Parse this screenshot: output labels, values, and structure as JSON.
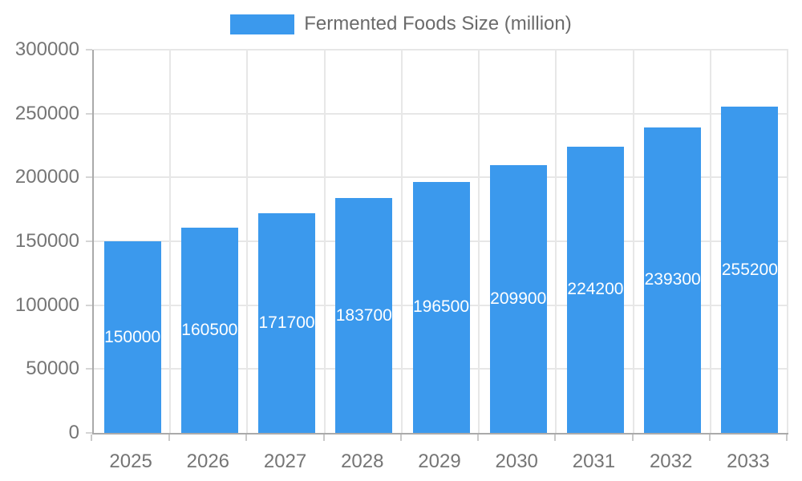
{
  "legend": {
    "label": "Fermented Foods Size (million)"
  },
  "colors": {
    "bar": "#3B99ED",
    "axis_line": "#AAAAAA",
    "gridline": "#E7E7E7",
    "y_tick": "#D5D5D5",
    "x_tick": "#C9C9C9",
    "axis_text": "#757575",
    "legend_text": "#6B6B6B",
    "bar_label_text": "#FFFFFF",
    "background": "#FFFFFF"
  },
  "chart_data": {
    "type": "bar",
    "title": "Fermented Foods Size (million)",
    "categories": [
      "2025",
      "2026",
      "2027",
      "2028",
      "2029",
      "2030",
      "2031",
      "2032",
      "2033"
    ],
    "values": [
      150000,
      160500,
      171700,
      183700,
      196500,
      209900,
      224200,
      239300,
      255200
    ],
    "value_labels": [
      "150000",
      "160500",
      "171700",
      "183700",
      "196500",
      "209900",
      "224200",
      "239300",
      "255200"
    ],
    "xlabel": "",
    "ylabel": "",
    "ylim": [
      0,
      300000
    ],
    "y_tick_step": 50000,
    "y_tick_labels": [
      "0",
      "50000",
      "100000",
      "150000",
      "200000",
      "250000",
      "300000"
    ],
    "grid": true,
    "legend_position": "top",
    "bar_labels": "inside-center-white"
  }
}
